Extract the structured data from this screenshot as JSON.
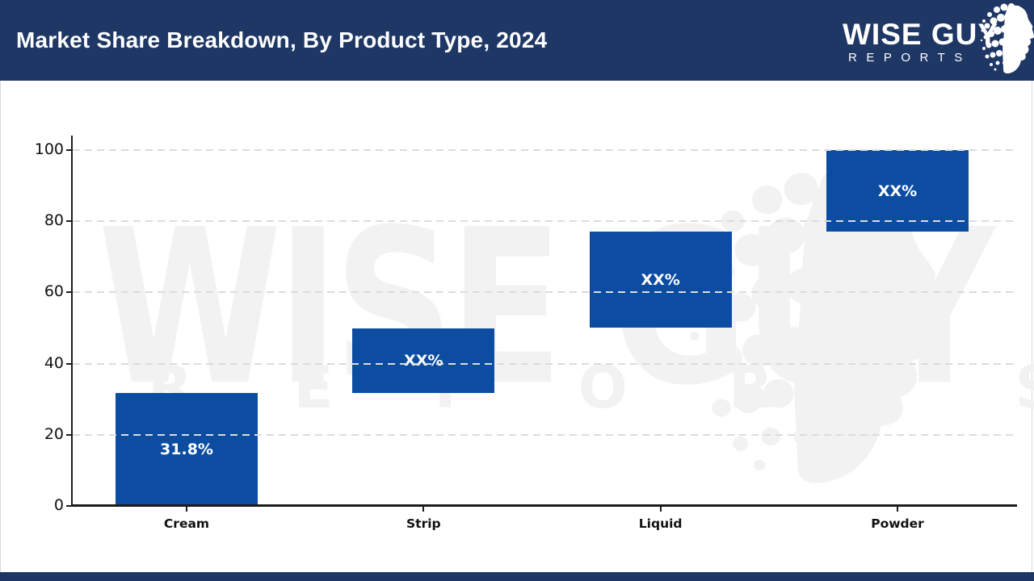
{
  "header": {
    "title": "Market Share Breakdown, By Product Type, 2024",
    "logo": {
      "line1": "WISE GUY",
      "line2": "REPORTS"
    }
  },
  "watermark": {
    "line1": "WISE GUY",
    "line2": "REPORTS"
  },
  "chart_data": {
    "type": "bar",
    "variant": "floating-segment-waterfall",
    "title": "Market Share Breakdown, By Product Type, 2024",
    "categories": [
      "Cream",
      "Strip",
      "Liquid",
      "Powder"
    ],
    "bars": [
      {
        "category": "Cream",
        "start": 0,
        "end": 31.8,
        "label": "31.8%"
      },
      {
        "category": "Strip",
        "start": 31.8,
        "end": 50,
        "label": "XX%"
      },
      {
        "category": "Liquid",
        "start": 50,
        "end": 77,
        "label": "XX%"
      },
      {
        "category": "Powder",
        "start": 77,
        "end": 100,
        "label": "XX%"
      }
    ],
    "xlabel": "",
    "ylabel": "",
    "ylim": [
      0,
      100
    ],
    "yticks": [
      0,
      20,
      40,
      60,
      80,
      100
    ],
    "grid": "horizontal-dashed",
    "legend": "none",
    "colors": {
      "bar": "#0c4da2",
      "bar_label": "#ffffff",
      "grid": "#dcdcdc",
      "axis": "#1c1c1c",
      "header_bg": "#1f3765",
      "footer_bg": "#1f3765",
      "watermark": "#f2f2f2"
    }
  }
}
